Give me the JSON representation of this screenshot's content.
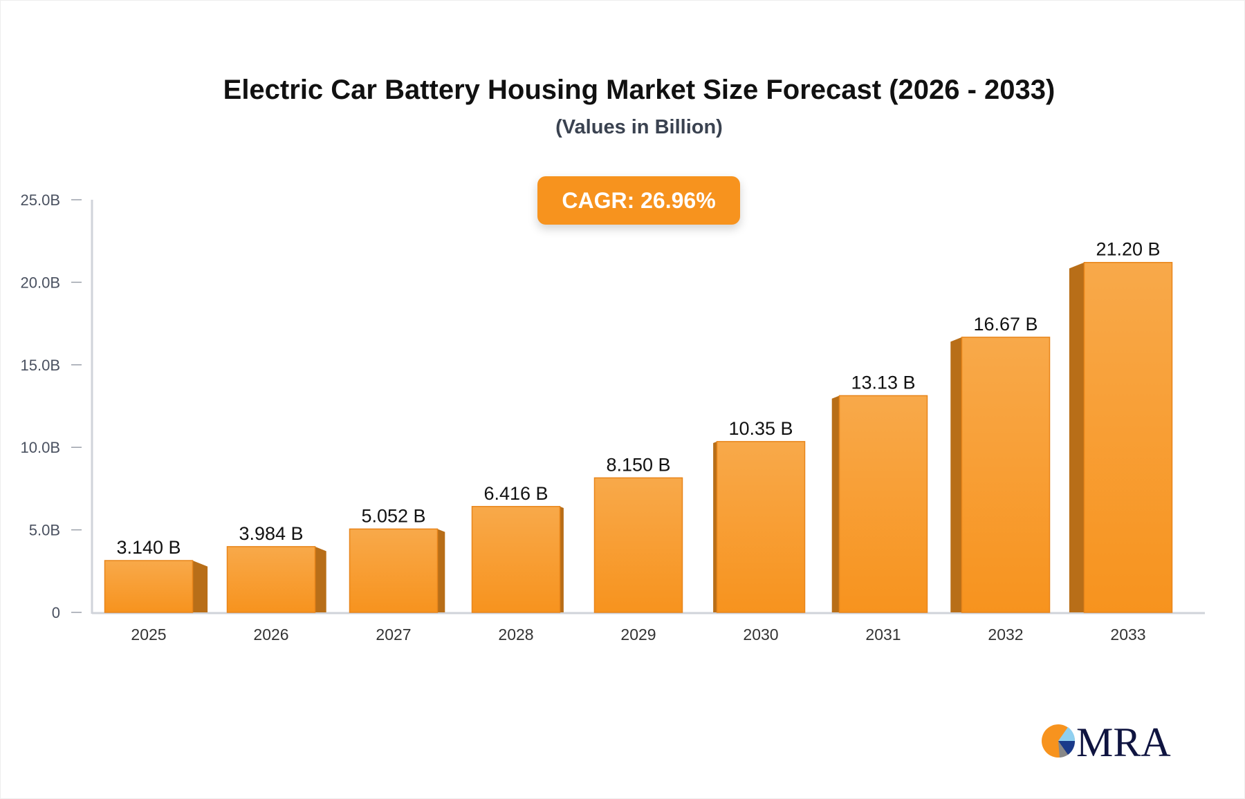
{
  "chart_data": {
    "type": "bar",
    "title": "Electric Car Battery Housing Market Size Forecast (2026 - 2033)",
    "subtitle": "(Values in Billion)",
    "annotation": "CAGR: 26.96%",
    "categories": [
      "2025",
      "2026",
      "2027",
      "2028",
      "2029",
      "2030",
      "2031",
      "2032",
      "2033"
    ],
    "values": [
      3.14,
      3.984,
      5.052,
      6.416,
      8.15,
      10.35,
      13.13,
      16.67,
      21.2
    ],
    "data_labels": [
      "3.140 B",
      "3.984 B",
      "5.052 B",
      "6.416 B",
      "8.150 B",
      "10.35 B",
      "13.13 B",
      "16.67 B",
      "21.20 B"
    ],
    "yticks": [
      0,
      5,
      10,
      15,
      20,
      25
    ],
    "ytick_labels": [
      "0",
      "5.0B",
      "10.0B",
      "15.0B",
      "20.0B",
      "25.0B"
    ],
    "ylim": [
      0,
      25
    ],
    "xlabel": "",
    "ylabel": "",
    "grid": false,
    "colors": {
      "bar_top": "#f8a94a",
      "bar_bottom": "#f7931e",
      "bar_side": "#b86e18",
      "axis": "#d0d3da",
      "badge": "#f7931e"
    }
  },
  "logo": {
    "text": "MRA"
  }
}
